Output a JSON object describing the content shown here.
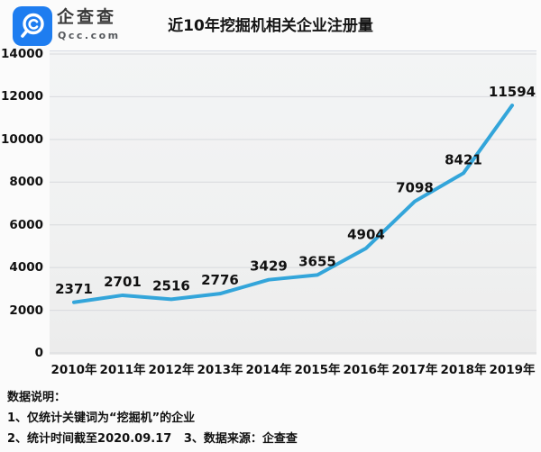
{
  "brand": {
    "name": "企查查",
    "domain": "Qcc.com",
    "logo_color": "#1e7df0"
  },
  "title": "近10年挖掘机相关企业注册量",
  "chart_data": {
    "type": "line",
    "title": "近10年挖掘机相关企业注册量",
    "categories": [
      "2010年",
      "2011年",
      "2012年",
      "2013年",
      "2014年",
      "2015年",
      "2016年",
      "2017年",
      "2018年",
      "2019年"
    ],
    "values": [
      2371,
      2701,
      2516,
      2776,
      3429,
      3655,
      4904,
      7098,
      8421,
      11594
    ],
    "xlabel": "",
    "ylabel": "",
    "ylim": [
      0,
      14000
    ],
    "y_ticks": [
      0,
      2000,
      4000,
      6000,
      8000,
      10000,
      12000,
      14000
    ],
    "grid": true,
    "legend": false,
    "line_color": "#33a5da",
    "grid_color": "#d8dadd",
    "plot_bg": "#f0f1f1",
    "data_label_color": "#111111"
  },
  "footer": {
    "heading": "数据说明：",
    "note1": "1、仅统计关键词为“挖掘机”的企业",
    "note2": "2、统计时间截至2020.09.17   3、数据来源：企查查"
  }
}
